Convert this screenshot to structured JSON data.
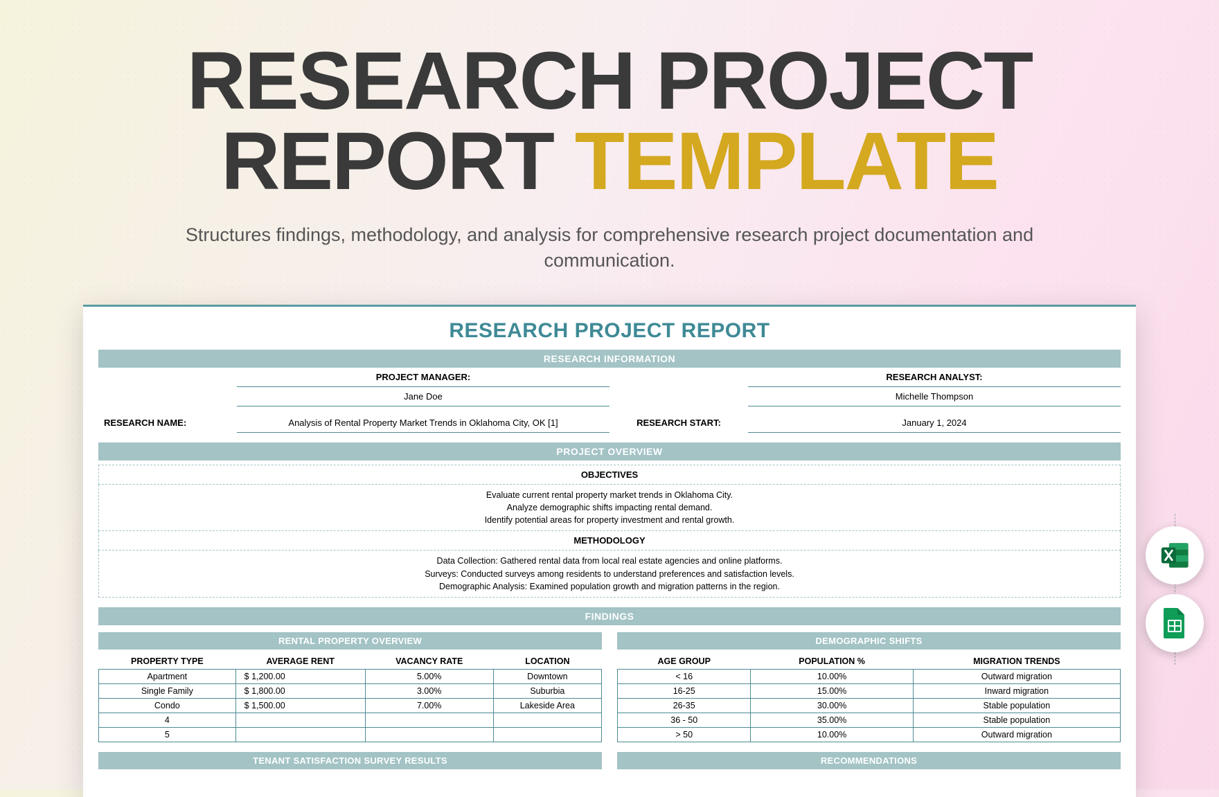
{
  "hero": {
    "line1": "RESEARCH PROJECT",
    "line2a": "REPORT",
    "line2b": "TEMPLATE",
    "subtitle": "Structures findings, methodology, and analysis for comprehensive research project documentation and communication."
  },
  "colors": {
    "accent": "#d4a81f",
    "heading_dark": "#3a3a3a",
    "doc_title": "#3f8a96",
    "bar_bg": "#a3c3c5",
    "bar_fg": "#ffffff",
    "cell_border": "#4b8a93"
  },
  "doc": {
    "title": "RESEARCH PROJECT REPORT",
    "sections": {
      "research_info": {
        "bar": "RESEARCH INFORMATION",
        "labels": {
          "pm": "PROJECT MANAGER:",
          "ra": "RESEARCH ANALYST:",
          "name": "RESEARCH NAME:",
          "start": "RESEARCH START:"
        },
        "values": {
          "pm": "Jane Doe",
          "ra": "Michelle Thompson",
          "name": "Analysis of Rental Property Market Trends in Oklahoma City, OK [1]",
          "start": "January 1, 2024"
        }
      },
      "overview": {
        "bar": "PROJECT OVERVIEW",
        "objectives_h": "OBJECTIVES",
        "objectives_body": "Evaluate current rental property market trends in Oklahoma City.\nAnalyze demographic shifts impacting rental demand.\nIdentify potential areas for property investment and rental growth.",
        "method_h": "METHODOLOGY",
        "method_body": "Data Collection: Gathered rental data from local real estate agencies and online platforms.\nSurveys: Conducted surveys among residents to understand preferences and satisfaction levels.\nDemographic Analysis: Examined population growth and migration patterns in the region."
      },
      "findings": {
        "bar": "FINDINGS",
        "left": {
          "title": "RENTAL PROPERTY OVERVIEW",
          "columns": [
            "PROPERTY TYPE",
            "AVERAGE RENT",
            "VACANCY RATE",
            "LOCATION"
          ],
          "rows": [
            [
              "Apartment",
              "$        1,200.00",
              "5.00%",
              "Downtown"
            ],
            [
              "Single Family",
              "$        1,800.00",
              "3.00%",
              "Suburbia"
            ],
            [
              "Condo",
              "$        1,500.00",
              "7.00%",
              "Lakeside Area"
            ],
            [
              "4",
              "",
              "",
              ""
            ],
            [
              "5",
              "",
              "",
              ""
            ]
          ]
        },
        "right": {
          "title": "DEMOGRAPHIC SHIFTS",
          "columns": [
            "AGE GROUP",
            "POPULATION %",
            "MIGRATION TRENDS"
          ],
          "rows": [
            [
              "< 16",
              "10.00%",
              "Outward migration"
            ],
            [
              "16-25",
              "15.00%",
              "Inward migration"
            ],
            [
              "26-35",
              "30.00%",
              "Stable population"
            ],
            [
              "36 - 50",
              "35.00%",
              "Stable population"
            ],
            [
              "> 50",
              "10.00%",
              "Outward migration"
            ]
          ]
        }
      },
      "bottom": {
        "left_bar": "TENANT SATISFACTION SURVEY RESULTS",
        "right_bar": "RECOMMENDATIONS"
      }
    }
  },
  "icons": {
    "excel": "excel-icon",
    "sheets": "sheets-icon"
  }
}
